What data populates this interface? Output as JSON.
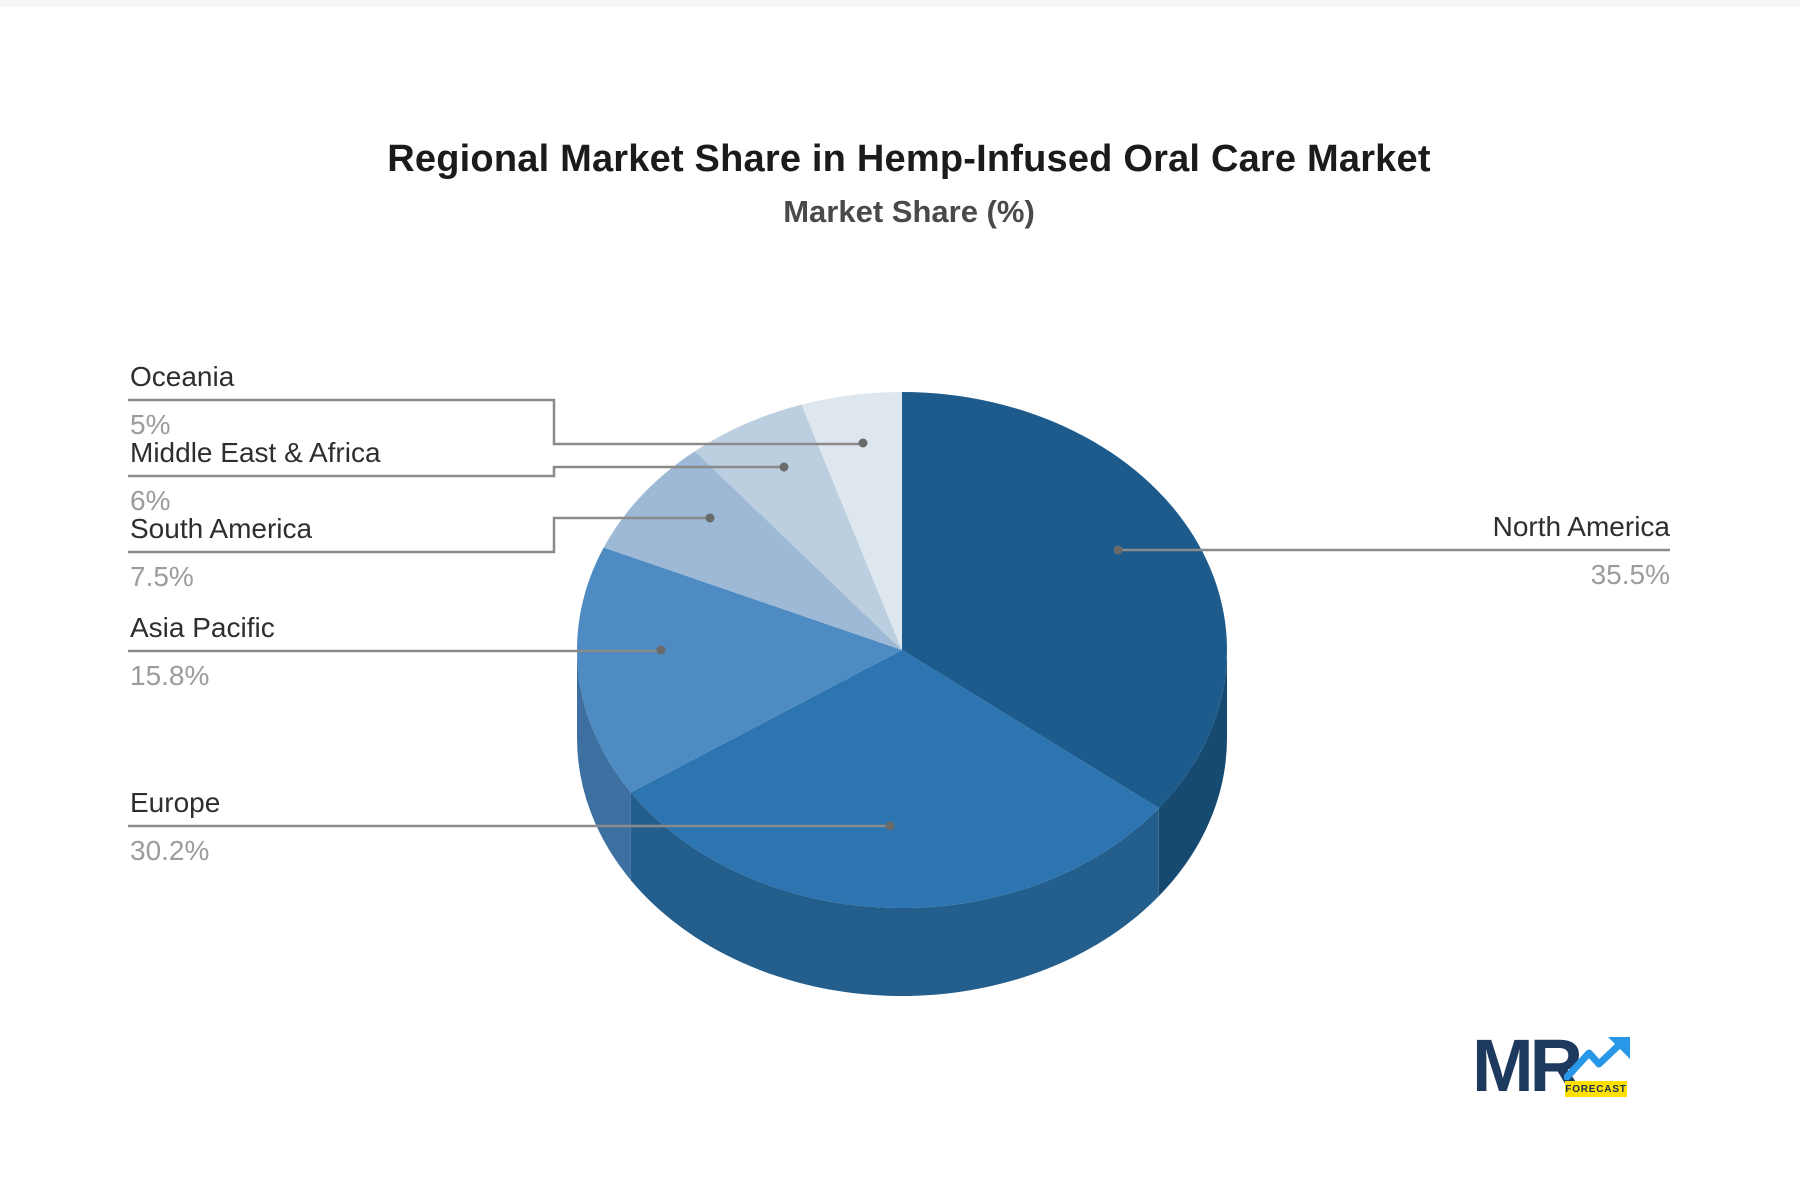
{
  "header": {
    "title": "Regional Market Share in Hemp-Infused Oral Care Market",
    "subtitle": "Market Share (%)"
  },
  "chart_data": {
    "type": "pie",
    "style": "3d",
    "title": "Regional Market Share in Hemp-Infused Oral Care Market",
    "subtitle": "Market Share (%)",
    "unit": "%",
    "start_angle_deg": 0,
    "direction": "clockwise",
    "legend_position": "callout-labels",
    "slices": [
      {
        "label": "North America",
        "value": 35.5,
        "display": "35.5%",
        "color": "#1d5b8d",
        "side_color": "#174a70"
      },
      {
        "label": "Europe",
        "value": 30.2,
        "display": "30.2%",
        "color": "#2d75b0",
        "side_color": "#235e8c"
      },
      {
        "label": "Asia Pacific",
        "value": 15.8,
        "display": "15.8%",
        "color": "#4e8bc3",
        "side_color": "#3d70a0"
      },
      {
        "label": "South America",
        "value": 7.5,
        "display": "7.5%",
        "color": "#9db9d5",
        "side_color": "#7e9cb8"
      },
      {
        "label": "Middle East & Africa",
        "value": 6,
        "display": "6%",
        "color": "#bccfe0",
        "side_color": "#9bb0c3"
      },
      {
        "label": "Oceania",
        "value": 5,
        "display": "5%",
        "color": "#dfe7ee",
        "side_color": "#bac5cf"
      }
    ],
    "leader_line_color": "#8a8a8a",
    "leader_dot_color": "#6a6a6a",
    "label_color": "#2e2e2e",
    "value_color": "#9c9c9c"
  },
  "logo": {
    "text": "MR",
    "badge_text": "FORECAST",
    "text_color": "#1d3a5e",
    "arrow_color": "#2997e8",
    "badge_color": "#ffe000",
    "badge_text_color": "#16304f"
  }
}
